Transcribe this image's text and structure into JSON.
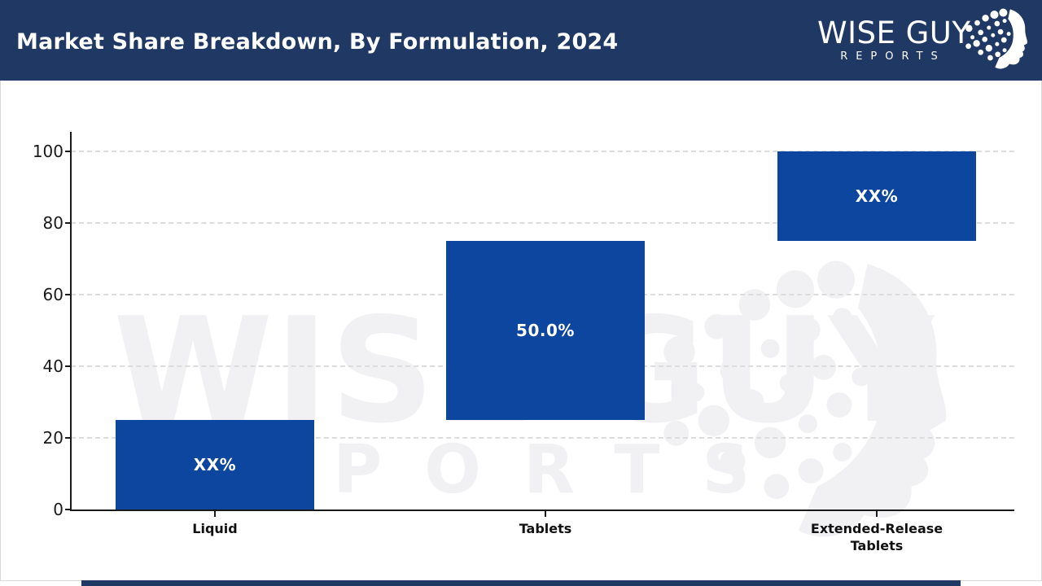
{
  "header": {
    "title": "Market Share Breakdown, By Formulation, 2024",
    "logo": {
      "wordmark": "WISE GUY",
      "subtext": "REPORTS"
    }
  },
  "watermark": {
    "wordmark": "WISE GUY",
    "subtext": "REPORTS"
  },
  "chart_data": {
    "type": "bar",
    "subtype": "floating-segment-bars",
    "title": "Market Share Breakdown, By Formulation, 2024",
    "categories": [
      "Liquid",
      "Tablets",
      "Extended-Release Tablets"
    ],
    "bars": [
      {
        "category": "Liquid",
        "from": 0,
        "to": 25,
        "label": "XX%"
      },
      {
        "category": "Tablets",
        "from": 25,
        "to": 75,
        "label": "50.0%"
      },
      {
        "category": "Extended-Release Tablets",
        "from": 75,
        "to": 100,
        "label": "XX%"
      }
    ],
    "yticks": [
      0,
      20,
      40,
      60,
      80,
      100
    ],
    "ylim": [
      0,
      105
    ],
    "xlabel": "",
    "ylabel": "",
    "legend": null,
    "grid": "horizontal-dashed",
    "colors": {
      "bar": "#0c469f",
      "bar_label": "#ffffff",
      "header_bg": "#203864",
      "gridline": "#dcdcdc",
      "axis": "#1a1a1a",
      "watermark": "#f1f1f4"
    }
  }
}
